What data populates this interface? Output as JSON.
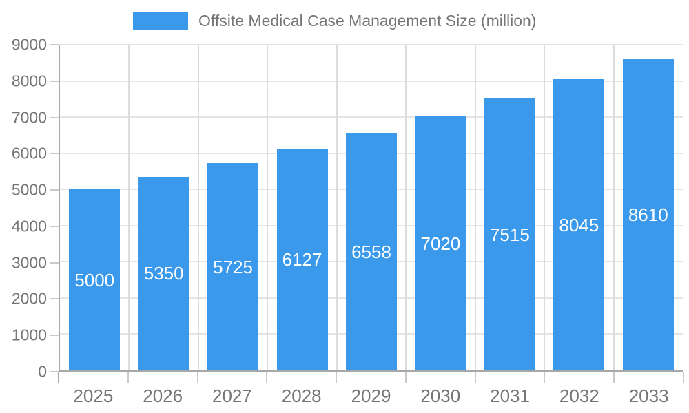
{
  "chart_data": {
    "type": "bar",
    "title": "Offsite Medical Case Management Size (million)",
    "series_name": "Offsite Medical Case Management Size (million)",
    "categories": [
      "2025",
      "2026",
      "2027",
      "2028",
      "2029",
      "2030",
      "2031",
      "2032",
      "2033"
    ],
    "values": [
      5000,
      5350,
      5725,
      6127,
      6558,
      7020,
      7515,
      8045,
      8610
    ],
    "xlabel": "",
    "ylabel": "",
    "ylim": [
      0,
      9000
    ],
    "yticks": [
      0,
      1000,
      2000,
      3000,
      4000,
      5000,
      6000,
      7000,
      8000,
      9000
    ],
    "grid": true,
    "legend_position": "top-center",
    "value_labels_position": "inside-center",
    "colors": {
      "bar": "#3B99EB",
      "bar_label": "#FFFFFF",
      "axis_text": "#757575",
      "grid_h": "#E4E4E4",
      "grid_v": "#DCDCDC",
      "axis_line": "#A8A8A8",
      "tick": "#C9C9C9",
      "background": "#FFFFFF"
    }
  }
}
